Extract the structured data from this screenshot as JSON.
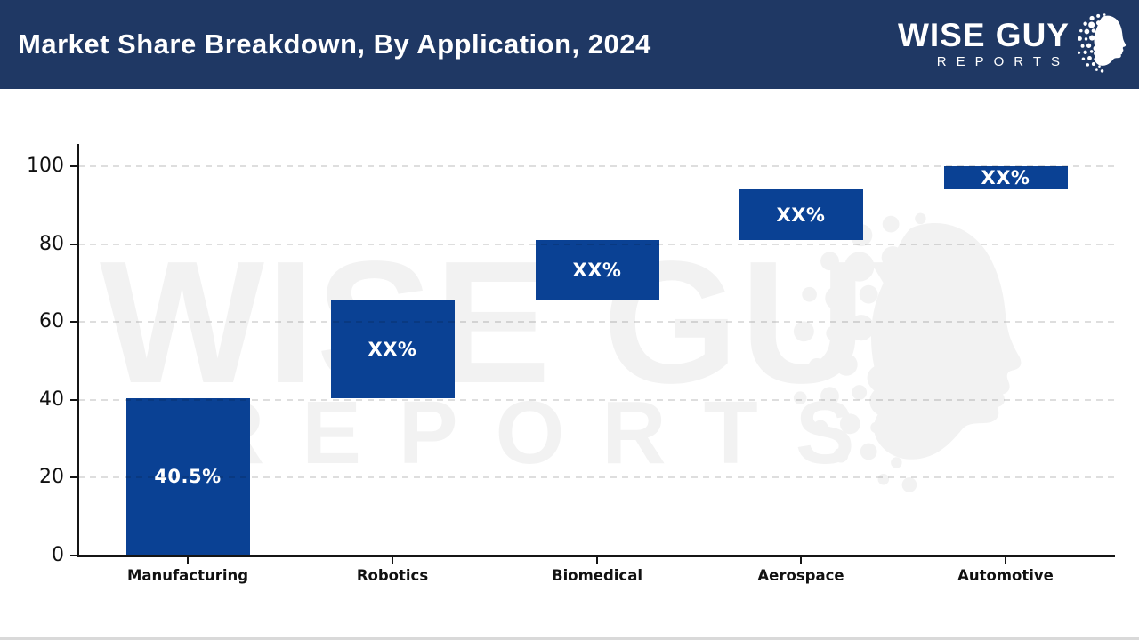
{
  "header": {
    "title": "Market Share Breakdown, By Application, 2024",
    "logo": {
      "line1": "WISE GUY",
      "line2": "REPORTS"
    }
  },
  "watermark": {
    "line1": "WISE GUY",
    "line2": "REPORTS"
  },
  "colors": {
    "header_bg": "#1f3864",
    "bar_fill": "#0a4194",
    "bar_label_text": "#ffffff",
    "watermark": "#f2f2f2",
    "axis": "#151515"
  },
  "chart_data": {
    "type": "bar",
    "subtype": "waterfall",
    "title": "Market Share Breakdown, By Application, 2024",
    "xlabel": "",
    "ylabel": "",
    "ylim": [
      0,
      105
    ],
    "yticks": [
      0,
      20,
      40,
      60,
      80,
      100
    ],
    "grid": "horizontal-dashed",
    "legend": "none",
    "categories": [
      "Manufacturing",
      "Robotics",
      "Biomedical",
      "Aerospace",
      "Automotive"
    ],
    "segments": [
      {
        "category": "Manufacturing",
        "start": 0,
        "end": 40.5,
        "label": "40.5%"
      },
      {
        "category": "Robotics",
        "start": 40.5,
        "end": 65.5,
        "label": "XX%"
      },
      {
        "category": "Biomedical",
        "start": 65.5,
        "end": 81,
        "label": "XX%"
      },
      {
        "category": "Aerospace",
        "start": 81,
        "end": 94,
        "label": "XX%"
      },
      {
        "category": "Automotive",
        "start": 94,
        "end": 100,
        "label": "XX%"
      }
    ]
  }
}
